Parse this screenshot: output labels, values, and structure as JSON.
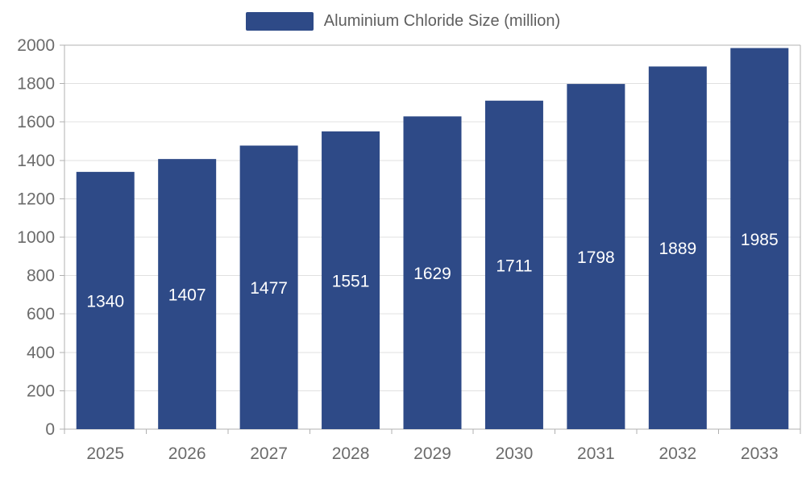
{
  "legend": {
    "label": "Aluminium Chloride Size (million)"
  },
  "chart_data": {
    "type": "bar",
    "title": "Aluminium Chloride Size (million)",
    "categories": [
      "2025",
      "2026",
      "2027",
      "2028",
      "2029",
      "2030",
      "2031",
      "2032",
      "2033"
    ],
    "values": [
      1340,
      1407,
      1477,
      1551,
      1629,
      1711,
      1798,
      1889,
      1985
    ],
    "xlabel": "",
    "ylabel": "",
    "ylim": [
      0,
      2000
    ],
    "ytick_step": 200,
    "grid": true,
    "legend_position": "top",
    "bar_color": "#2e4a87",
    "value_label_color": "#ffffff",
    "axis_color": "#b0b0b0",
    "grid_color": "#e0e0e0",
    "tick_label_color": "#6b6b6b"
  }
}
